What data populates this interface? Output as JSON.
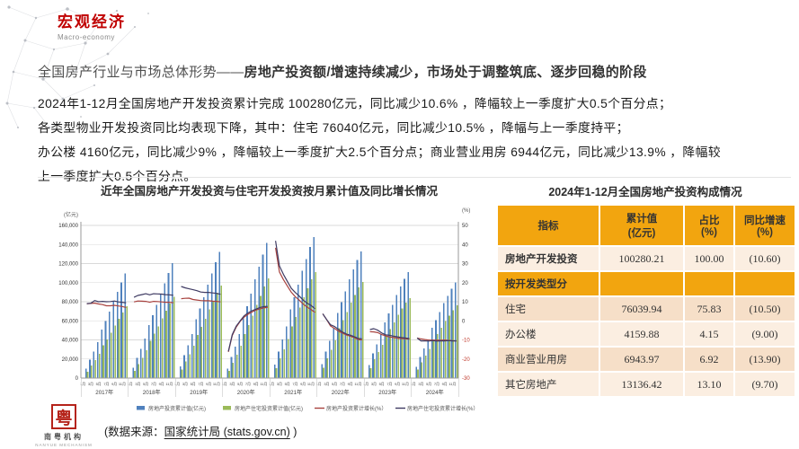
{
  "header": {
    "title": "宏观经济",
    "subtitle": "Macro-economy",
    "accent_color": "#c00000"
  },
  "headline": {
    "prefix": "全国房产行业与市场总体形势——",
    "emphasis": "房地产投资额/增速持续减少，市场处于调整筑底、逐步回稳的阶段"
  },
  "body": {
    "lines": [
      "2024年1-12月全国房地产开发投资累计完成 100280亿元，同比减少10.6% ，降幅较上一季度扩大0.5个百分点；",
      "各类型物业开发投资同比均表现下降，其中：住宅 76040亿元，同比减少10.5% ，降幅与上一季度持平；",
      "办公楼 4160亿元，同比减少9% ，降幅较上一季度扩大2.5个百分点；商业营业用房 6944亿元，同比减少13.9% ，降幅较",
      "上一季度扩大0.5个百分点。"
    ]
  },
  "chart_data": {
    "type": "bar+line",
    "title": "近年全国房地产开发投资与住宅开发投资按月累计值及同比增长情况",
    "unit_left": "(亿元)",
    "unit_right": "(%)",
    "y_left": {
      "min": 0,
      "max": 160000,
      "step": 20000
    },
    "y_right": {
      "min": -30,
      "max": 50,
      "step": 10
    },
    "years": [
      "2017年",
      "2018年",
      "2019年",
      "2020年",
      "2021年",
      "2022年",
      "2023年",
      "2024年"
    ],
    "month_ticks": [
      "1月",
      "3月",
      "5月",
      "7月",
      "9月",
      "11月"
    ],
    "legend_colors": {
      "bar1": "#4f81bd",
      "bar2": "#9bbb59",
      "line1": "#a8423f",
      "line2": "#3f3b63"
    },
    "series": [
      {
        "name": "房地产投资累计值(亿元)",
        "type": "bar",
        "axis": "left",
        "color": "#4f81bd",
        "values": [
          [
            9854,
            19292,
            27732,
            37595,
            50610,
            59761,
            69494,
            80644,
            90544,
            100387,
            109799
          ],
          [
            10831,
            21291,
            30592,
            41420,
            55531,
            65886,
            76519,
            88665,
            99325,
            110083,
            120264
          ],
          [
            12090,
            23803,
            34217,
            46075,
            61609,
            72843,
            84589,
            97886,
            109603,
            121265,
            132101
          ],
          [
            10115,
            21963,
            33103,
            45920,
            62780,
            75325,
            88454,
            103484,
            116556,
            129492,
            141443
          ],
          [
            13986,
            27576,
            40240,
            54318,
            72179,
            84895,
            98060,
            112568,
            124934,
            137314,
            147602
          ],
          [
            14499,
            27765,
            39154,
            52134,
            68314,
            79462,
            90809,
            103559,
            113945,
            123863,
            132895
          ],
          [
            13669,
            25974,
            35514,
            45701,
            58550,
            67717,
            76900,
            87269,
            95922,
            104045,
            110913
          ],
          [
            11842,
            22082,
            30929,
            40632,
            52529,
            60877,
            69284,
            78680,
            86309,
            93634,
            100280
          ]
        ]
      },
      {
        "name": "房地产住宅投资累计值(亿元)",
        "type": "bar",
        "axis": "left",
        "color": "#9bbb59",
        "values": [
          [
            6571,
            12981,
            18671,
            25423,
            34318,
            40683,
            47443,
            55109,
            62000,
            68670,
            75148
          ],
          [
            7379,
            14631,
            21332,
            29037,
            38990,
            46443,
            54114,
            62806,
            70370,
            77895,
            85192
          ],
          [
            8711,
            17256,
            24925,
            33780,
            45167,
            53466,
            62187,
            72146,
            80666,
            89232,
            97071
          ],
          [
            7318,
            16015,
            24238,
            33765,
            46350,
            55682,
            65454,
            76562,
            86298,
            95837,
            104446
          ],
          [
            10387,
            20624,
            30156,
            40750,
            54244,
            63980,
            73971,
            84906,
            94327,
            103587,
            111173
          ],
          [
            10769,
            20761,
            29527,
            39521,
            52057,
            60648,
            69394,
            79177,
            87208,
            94874,
            100646
          ],
          [
            10273,
            19767,
            27072,
            34809,
            44439,
            51485,
            58425,
            66279,
            72799,
            78852,
            83820
          ],
          [
            8823,
            16585,
            23392,
            30724,
            39883,
            46216,
            52627,
            59756,
            65532,
            71190,
            76040
          ]
        ]
      },
      {
        "name": "房地产投资累计增长(%）",
        "type": "line",
        "axis": "right",
        "color": "#a8423f",
        "values": [
          [
            8.9,
            9.1,
            9.3,
            8.8,
            8.5,
            7.9,
            7.9,
            8.1,
            7.8,
            7.5,
            7.0
          ],
          [
            9.9,
            10.4,
            10.3,
            10.2,
            9.7,
            10.2,
            10.1,
            9.9,
            9.7,
            9.7,
            9.5
          ],
          [
            11.6,
            11.8,
            11.9,
            11.2,
            10.9,
            10.6,
            10.5,
            10.5,
            10.3,
            10.2,
            9.9
          ],
          [
            -16.3,
            -7.7,
            -3.3,
            -0.3,
            1.9,
            3.4,
            4.6,
            5.6,
            6.3,
            6.8,
            7.0
          ],
          [
            38.3,
            25.6,
            21.6,
            18.3,
            15.0,
            12.7,
            10.9,
            8.8,
            7.2,
            6.0,
            4.4
          ],
          [
            3.7,
            0.7,
            -2.7,
            -4.0,
            -5.4,
            -6.4,
            -7.4,
            -8.0,
            -8.8,
            -9.8,
            -10.0
          ],
          [
            -5.7,
            -5.8,
            -6.2,
            -7.2,
            -7.9,
            -8.5,
            -8.8,
            -9.1,
            -9.3,
            -9.4,
            -9.6
          ],
          [
            -9.0,
            -9.5,
            -9.8,
            -10.1,
            -10.1,
            -10.2,
            -10.2,
            -10.1,
            -10.3,
            -10.4,
            -10.6
          ]
        ]
      },
      {
        "name": "房地产住宅投资累计增长(%）",
        "type": "line",
        "axis": "right",
        "color": "#3f3b63",
        "values": [
          [
            9.0,
            9.2,
            10.6,
            10.0,
            10.2,
            10.0,
            10.1,
            10.4,
            9.9,
            9.7,
            9.4
          ],
          [
            12.3,
            13.3,
            13.7,
            14.2,
            13.6,
            14.2,
            14.1,
            14.0,
            13.7,
            13.6,
            13.4
          ],
          [
            18.0,
            17.3,
            16.8,
            16.3,
            15.8,
            15.1,
            14.9,
            14.9,
            14.6,
            14.4,
            13.9
          ],
          [
            -16.0,
            -7.2,
            -2.8,
            0.0,
            2.6,
            4.1,
            5.3,
            6.1,
            7.0,
            7.4,
            7.6
          ],
          [
            41.9,
            28.8,
            24.4,
            20.7,
            17.0,
            14.9,
            13.0,
            10.9,
            9.3,
            8.1,
            6.4
          ],
          [
            3.7,
            0.7,
            -2.1,
            -3.0,
            -4.5,
            -5.8,
            -6.9,
            -7.5,
            -8.3,
            -9.2,
            -9.5
          ],
          [
            -4.6,
            -4.1,
            -4.9,
            -6.4,
            -7.3,
            -7.6,
            -8.0,
            -8.4,
            -8.8,
            -9.0,
            -9.3
          ],
          [
            -9.0,
            -10.5,
            -10.5,
            -10.6,
            -10.4,
            -10.6,
            -10.5,
            -10.5,
            -10.4,
            -10.5,
            -10.5
          ]
        ]
      }
    ]
  },
  "table": {
    "title": "2024年1-12月全国房地产投资构成情况",
    "headers": [
      "指标",
      "累计值\n(亿元)",
      "占比\n(%)",
      "同比增速\n(%)"
    ],
    "rows": [
      {
        "type": "data",
        "shade": "light",
        "emph": true,
        "cells": [
          "房地产开发投资",
          "100280.21",
          "100.00",
          "(10.60)"
        ]
      },
      {
        "type": "section",
        "shade": "",
        "emph": true,
        "cells": [
          "按开发类型分",
          "",
          "",
          ""
        ]
      },
      {
        "type": "data",
        "shade": "dark",
        "emph": false,
        "cells": [
          "住宅",
          "76039.94",
          "75.83",
          "(10.50)"
        ]
      },
      {
        "type": "data",
        "shade": "light",
        "emph": false,
        "cells": [
          "办公楼",
          "4159.88",
          "4.15",
          "(9.00)"
        ]
      },
      {
        "type": "data",
        "shade": "dark",
        "emph": false,
        "cells": [
          "商业营业用房",
          "6943.97",
          "6.92",
          "(13.90)"
        ]
      },
      {
        "type": "data",
        "shade": "light",
        "emph": false,
        "cells": [
          "其它房地产",
          "13136.42",
          "13.10",
          "(9.70)"
        ]
      }
    ]
  },
  "footer": {
    "source_prefix": "(数据来源：",
    "source_link": "国家统计局 (stats.gov.cn)",
    "source_suffix": " )",
    "logo_seal": "粤",
    "logo_name": "南粤机构",
    "logo_name_en": "NANYUE MECHANISM"
  }
}
